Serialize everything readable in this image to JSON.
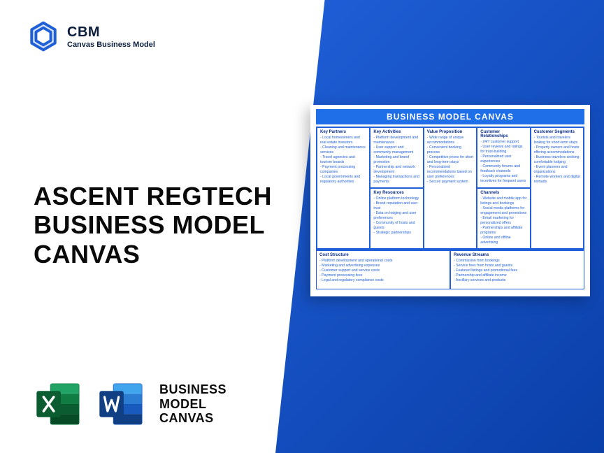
{
  "logo": {
    "abbr": "CBM",
    "name": "Canvas Business Model"
  },
  "title_line1": "ASCENT REGTECH",
  "title_line2": "BUSINESS MODEL",
  "title_line3": "CANVAS",
  "bottom_label_l1": "BUSINESS",
  "bottom_label_l2": "MODEL",
  "bottom_label_l3": "CANVAS",
  "colors": {
    "brand_blue": "#1f5fd8",
    "brand_deep": "#0a3fa8",
    "excel_green": "#107c41",
    "excel_dark": "#0b5c30",
    "word_blue": "#185abd",
    "word_dark": "#103f83",
    "text_dark": "#0a0a0a"
  },
  "canvas": {
    "title": "BUSINESS MODEL CANVAS",
    "blocks": {
      "key_partners": {
        "title": "Key Partners",
        "items": [
          "Local homeowners and real estate investors",
          "Cleaning and maintenance services",
          "Travel agencies and tourism boards",
          "Payment processing companies",
          "Local governments and regulatory authorities"
        ]
      },
      "key_activities": {
        "title": "Key Activities",
        "items": [
          "Platform development and maintenance",
          "User support and community management",
          "Marketing and brand promotion",
          "Partnership and network development",
          "Managing transactions and payments"
        ]
      },
      "value_proposition": {
        "title": "Value Proposition",
        "items": [
          "Wide range of unique accommodations",
          "Convenient booking process",
          "Competitive prices for short and long-term stays",
          "Personalized recommendations based on user preferences",
          "Secure payment system"
        ]
      },
      "customer_relationships": {
        "title": "Customer Relationships",
        "items": [
          "24/7 customer support",
          "User reviews and ratings for trust-building",
          "Personalized user experiences",
          "Community forums and feedback channels",
          "Loyalty programs and incentives for frequent users"
        ]
      },
      "customer_segments": {
        "title": "Customer Segments",
        "items": [
          "Tourists and travelers looking for short-term stays",
          "Property owners and hosts offering accommodations",
          "Business travelers seeking comfortable lodging",
          "Event planners and organizations",
          "Remote workers and digital nomads"
        ]
      },
      "key_resources": {
        "title": "Key Resources",
        "items": [
          "Online platform technology",
          "Brand reputation and user trust",
          "Data on lodging and user preferences",
          "Community of hosts and guests",
          "Strategic partnerships"
        ]
      },
      "channels": {
        "title": "Channels",
        "items": [
          "Website and mobile app for listings and bookings",
          "Social media platforms for engagement and promotions",
          "Email marketing for personalized offers",
          "Partnerships and affiliate programs",
          "Online and offline advertising"
        ]
      },
      "cost_structure": {
        "title": "Cost Structure",
        "items": [
          "Platform development and operational costs",
          "Marketing and advertising expenses",
          "Customer support and service costs",
          "Payment processing fees",
          "Legal and regulatory compliance costs"
        ]
      },
      "revenue_streams": {
        "title": "Revenue Streams",
        "items": [
          "Commission from bookings",
          "Service fees from hosts and guests",
          "Featured listings and promotional fees",
          "Partnership and affiliate income",
          "Ancillary services and products"
        ]
      }
    }
  }
}
